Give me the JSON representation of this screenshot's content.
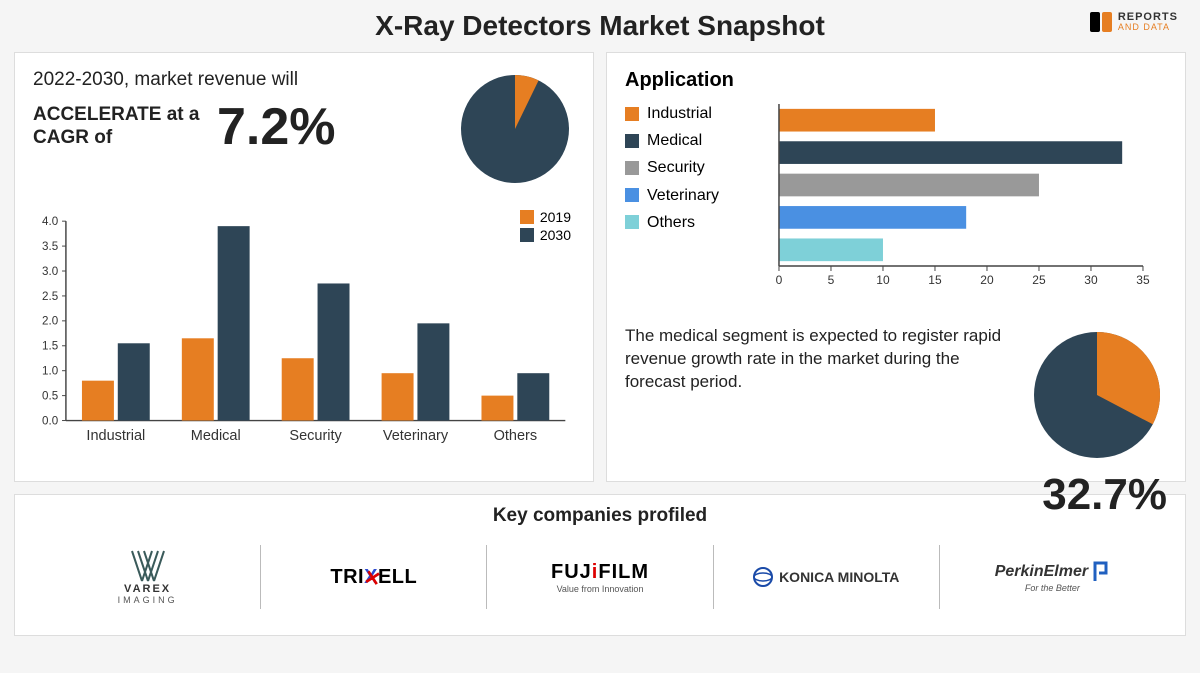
{
  "title": "X-Ray Detectors Market Snapshot",
  "brand": {
    "line1": "REPORTS",
    "line2": "AND DATA"
  },
  "colors": {
    "orange": "#e67e22",
    "navy": "#2e4556",
    "gray": "#999999",
    "blue": "#4a90e2",
    "cyan": "#7ed0d8",
    "axis": "#444",
    "grid": "#cccccc",
    "panel_bg": "#ffffff"
  },
  "left_panel": {
    "line1": "2022-2030, market revenue will",
    "accelerate_label": "ACCELERATE at a CAGR of",
    "cagr_value": "7.2%",
    "pie": {
      "slice_pct": 7.2,
      "slice_color": "#e67e22",
      "rest_color": "#2e4556"
    },
    "grouped_bar": {
      "type": "bar",
      "legend": [
        {
          "label": "2019",
          "color": "#e67e22"
        },
        {
          "label": "2030",
          "color": "#2e4556"
        }
      ],
      "categories": [
        "Industrial",
        "Medical",
        "Security",
        "Veterinary",
        "Others"
      ],
      "series_2019": [
        0.8,
        1.65,
        1.25,
        0.95,
        0.5
      ],
      "series_2030": [
        1.55,
        3.9,
        2.75,
        1.95,
        0.95
      ],
      "y_ticks": [
        0.0,
        0.5,
        1.0,
        1.5,
        2.0,
        2.5,
        3.0,
        3.5,
        4.0
      ],
      "ylim": [
        0,
        4.0
      ],
      "bar_width_ratio": 0.32,
      "axis_fontsize": 12,
      "cat_fontsize": 15
    }
  },
  "right_panel": {
    "header": "Application",
    "hbar": {
      "type": "hbar",
      "items": [
        {
          "name": "Industrial",
          "value": 15,
          "color": "#e67e22"
        },
        {
          "name": "Medical",
          "value": 33,
          "color": "#2e4556"
        },
        {
          "name": "Security",
          "value": 25,
          "color": "#999999"
        },
        {
          "name": "Veterinary",
          "value": 18,
          "color": "#4a90e2"
        },
        {
          "name": "Others",
          "value": 10,
          "color": "#7ed0d8"
        }
      ],
      "x_ticks": [
        0,
        5,
        10,
        15,
        20,
        25,
        30,
        35
      ],
      "xlim": [
        0,
        35
      ],
      "bar_height_ratio": 0.7
    },
    "segment_text": "The medical segment is expected to register rapid revenue growth rate in the market during the forecast period.",
    "pie2": {
      "slice_pct": 32.7,
      "slice_color": "#e67e22",
      "rest_color": "#2e4556"
    },
    "segment_pct": "32.7%"
  },
  "companies": {
    "title": "Key companies profiled",
    "list": [
      {
        "name": "VAREX",
        "sub": "IMAGING"
      },
      {
        "name": "TRIXELL",
        "sub": ""
      },
      {
        "name": "FUJIFILM",
        "sub": "Value from Innovation"
      },
      {
        "name": "KONICA MINOLTA",
        "sub": ""
      },
      {
        "name": "PerkinElmer",
        "sub": "For the Better"
      }
    ]
  }
}
